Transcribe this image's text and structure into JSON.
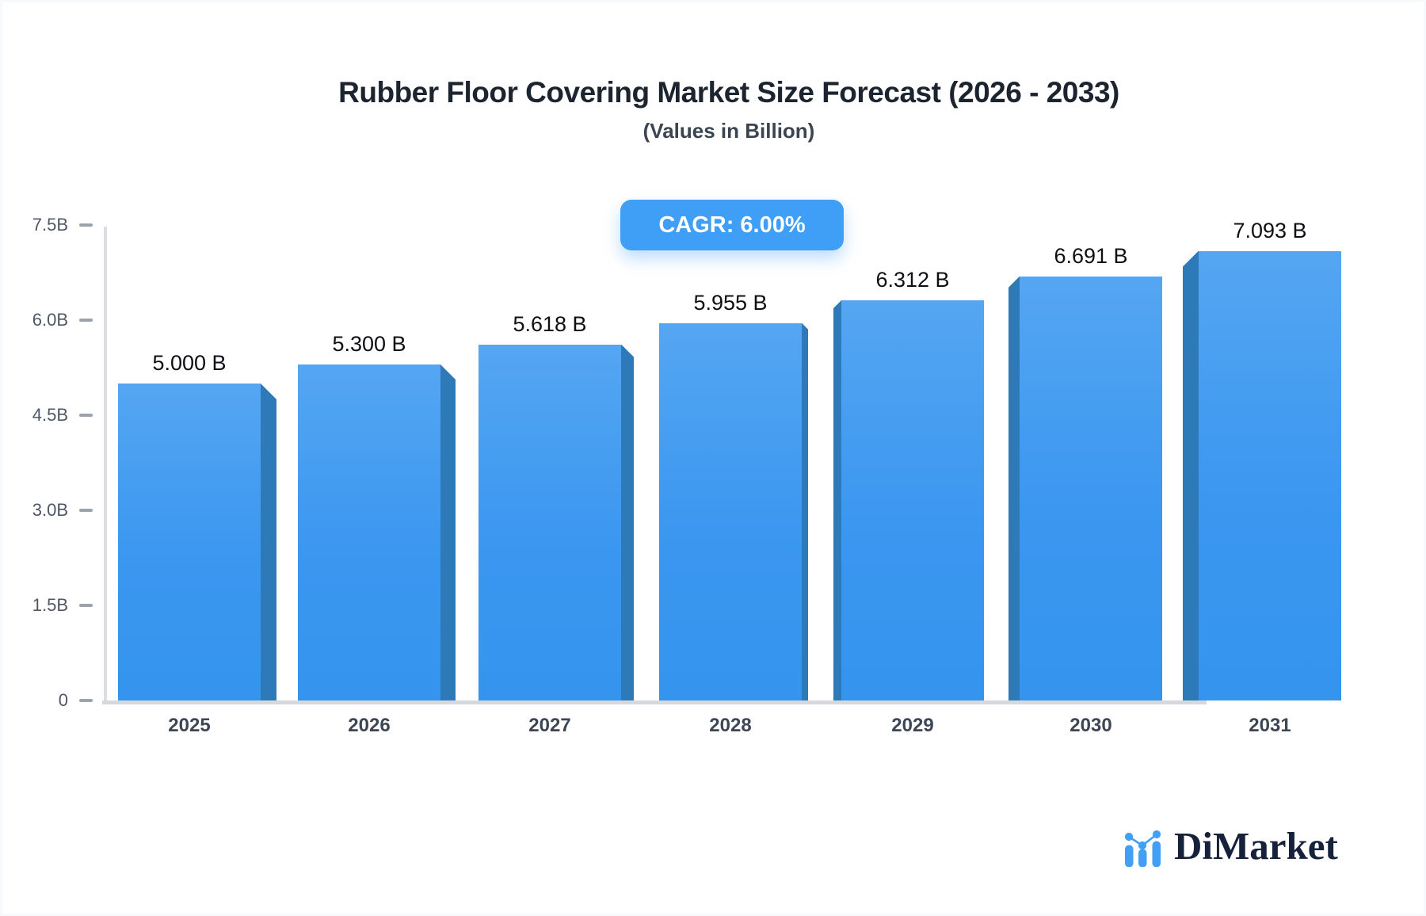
{
  "title": "Rubber Floor Covering Market Size Forecast (2026 - 2033)",
  "subtitle": "(Values in Billion)",
  "cagr_badge": "CAGR: 6.00%",
  "chart_data": {
    "type": "bar",
    "categories": [
      "2025",
      "2026",
      "2027",
      "2028",
      "2029",
      "2030",
      "2031"
    ],
    "values": [
      5.0,
      5.3,
      5.618,
      5.955,
      6.312,
      6.691,
      7.093
    ],
    "bar_labels": [
      "5.000 B",
      "5.300 B",
      "5.618 B",
      "5.955 B",
      "6.312 B",
      "6.691 B",
      "7.093 B"
    ],
    "title": "Rubber Floor Covering Market Size Forecast (2026 - 2033)",
    "xlabel": "",
    "ylabel": "",
    "ylim": [
      0,
      7.5
    ],
    "yticks": [
      0,
      1.5,
      3.0,
      4.5,
      6.0,
      7.5
    ],
    "ytick_labels": [
      "0",
      "1.5B",
      "3.0B",
      "4.5B",
      "6.0B",
      "7.5B"
    ],
    "grid": false,
    "legend": false,
    "style": "3d-perspective-bars"
  },
  "colors": {
    "bar_top": "#55a6f2",
    "bar_bottom": "#3494ee",
    "bar_side": "#2e7ab9",
    "badge_bg": "#3f9ef6",
    "badge_text": "#ffffff",
    "axis_line": "#d5d9de",
    "title_text": "#1c242f"
  },
  "branding": {
    "logo_text": "DiMarket",
    "logo_text_color": "#16213c",
    "logo_icon": "bar-chart-sparkline-icon",
    "logo_icon_color": "#41a0f5"
  }
}
